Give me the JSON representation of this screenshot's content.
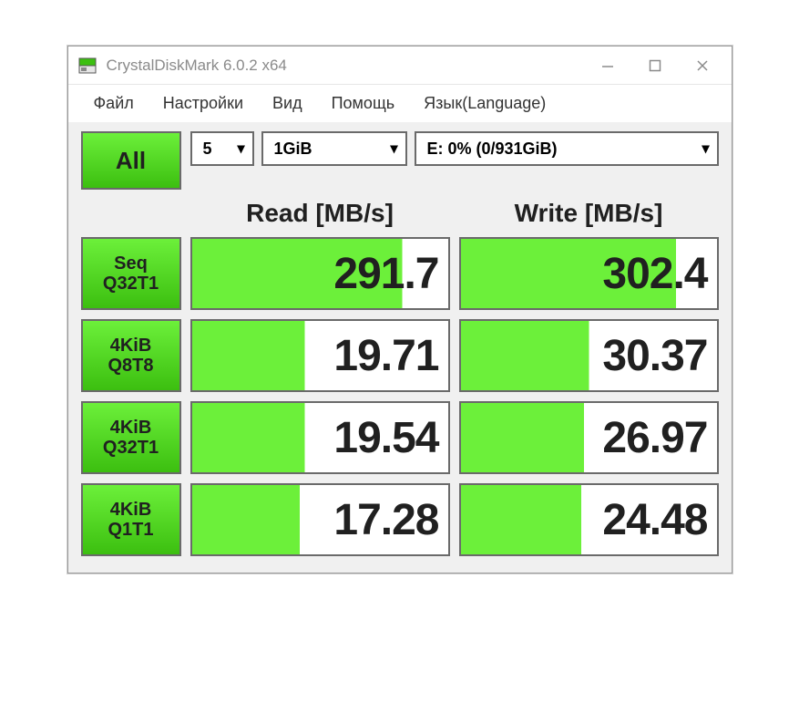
{
  "window": {
    "title": "CrystalDiskMark 6.0.2 x64"
  },
  "menubar": {
    "file": "Файл",
    "settings": "Настройки",
    "view": "Вид",
    "help": "Помощь",
    "language": "Язык(Language)"
  },
  "controls": {
    "all_label": "All",
    "runs": "5",
    "size": "1GiB",
    "drive": "E: 0% (0/931GiB)"
  },
  "headers": {
    "read": "Read [MB/s]",
    "write": "Write [MB/s]"
  },
  "tests": [
    {
      "line1": "Seq",
      "line2": "Q32T1",
      "read": "291.7",
      "read_fill": 82,
      "write": "302.4",
      "write_fill": 84
    },
    {
      "line1": "4KiB",
      "line2": "Q8T8",
      "read": "19.71",
      "read_fill": 44,
      "write": "30.37",
      "write_fill": 50
    },
    {
      "line1": "4KiB",
      "line2": "Q32T1",
      "read": "19.54",
      "read_fill": 44,
      "write": "26.97",
      "write_fill": 48
    },
    {
      "line1": "4KiB",
      "line2": "Q1T1",
      "read": "17.28",
      "read_fill": 42,
      "write": "24.48",
      "write_fill": 47
    }
  ],
  "colors": {
    "green_top": "#6cf03a",
    "green_bottom": "#3cbf10",
    "border": "#6a6a6a",
    "bg": "#f0f0f0",
    "title_grey": "#8a8a8a"
  }
}
